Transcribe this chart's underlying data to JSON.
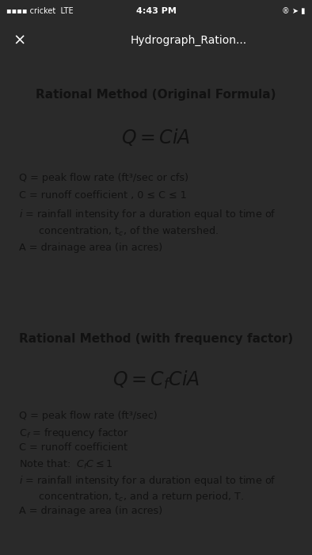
{
  "bg_color": "#2a2a2a",
  "status_bg": "#1c1c1c",
  "nav_bg": "#1c1c1c",
  "card_bg": "#ffffff",
  "card_border": "#888888",
  "text_color": "#111111",
  "white": "#ffffff",
  "card1_title": "Rational Method (Original Formula)",
  "card1_formula": "$\\mathbf{\\mathit{Q = CiA}}$",
  "card1_lines": [
    "Q = peak flow rate (ft³/sec or cfs)",
    "C = runoff coefficient , 0 ≤ C ≤ 1",
    "$\\mathit{i}$ = rainfall intensity for a duration equal to time of",
    "      concentration, t$_c$, of the watershed.",
    "A = drainage area (in acres)"
  ],
  "card2_title": "Rational Method (with frequency factor)",
  "card2_formula": "$\\mathbf{\\mathit{Q = C_fCiA}}$",
  "card2_lines": [
    "Q = peak flow rate (ft³/sec)",
    "C$_f$ = frequency factor",
    "C = runoff coefficient",
    "Note that:  $\\mathit{C_fC \\leq 1}$",
    "$\\mathit{i}$ = rainfall intensity for a duration equal to time of",
    "      concentration, t$_c$, and a return period, T.",
    "A = drainage area (in acres)"
  ],
  "title_fontsize": 11.0,
  "formula_fontsize": 17,
  "body_fontsize": 9.2,
  "status_fontsize": 7.0,
  "nav_fontsize": 10.0
}
